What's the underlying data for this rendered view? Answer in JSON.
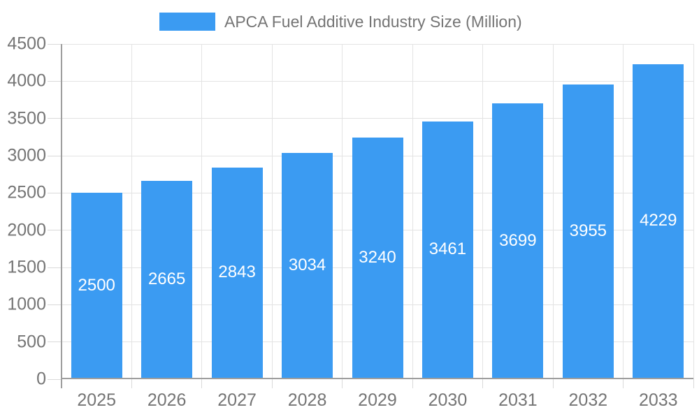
{
  "legend": {
    "label": "APCA Fuel Additive Industry Size (Million)"
  },
  "chart_data": {
    "type": "bar",
    "title": "APCA Fuel Additive Industry Size (Million)",
    "categories": [
      "2025",
      "2026",
      "2027",
      "2028",
      "2029",
      "2030",
      "2031",
      "2032",
      "2033"
    ],
    "values": [
      2500,
      2665,
      2843,
      3034,
      3240,
      3461,
      3699,
      3955,
      4229
    ],
    "xlabel": "",
    "ylabel": "",
    "ylim": [
      0,
      4500
    ],
    "yticks": [
      0,
      500,
      1000,
      1500,
      2000,
      2500,
      3000,
      3500,
      4000,
      4500
    ],
    "grid": true,
    "legend_position": "top",
    "bar_color": "#3b9bf2",
    "bar_label_color": "#ffffff",
    "axis_label_color": "#757575",
    "grid_color": "#e3e3e3",
    "axis_line_color": "#9e9e9e",
    "background": "#ffffff"
  }
}
